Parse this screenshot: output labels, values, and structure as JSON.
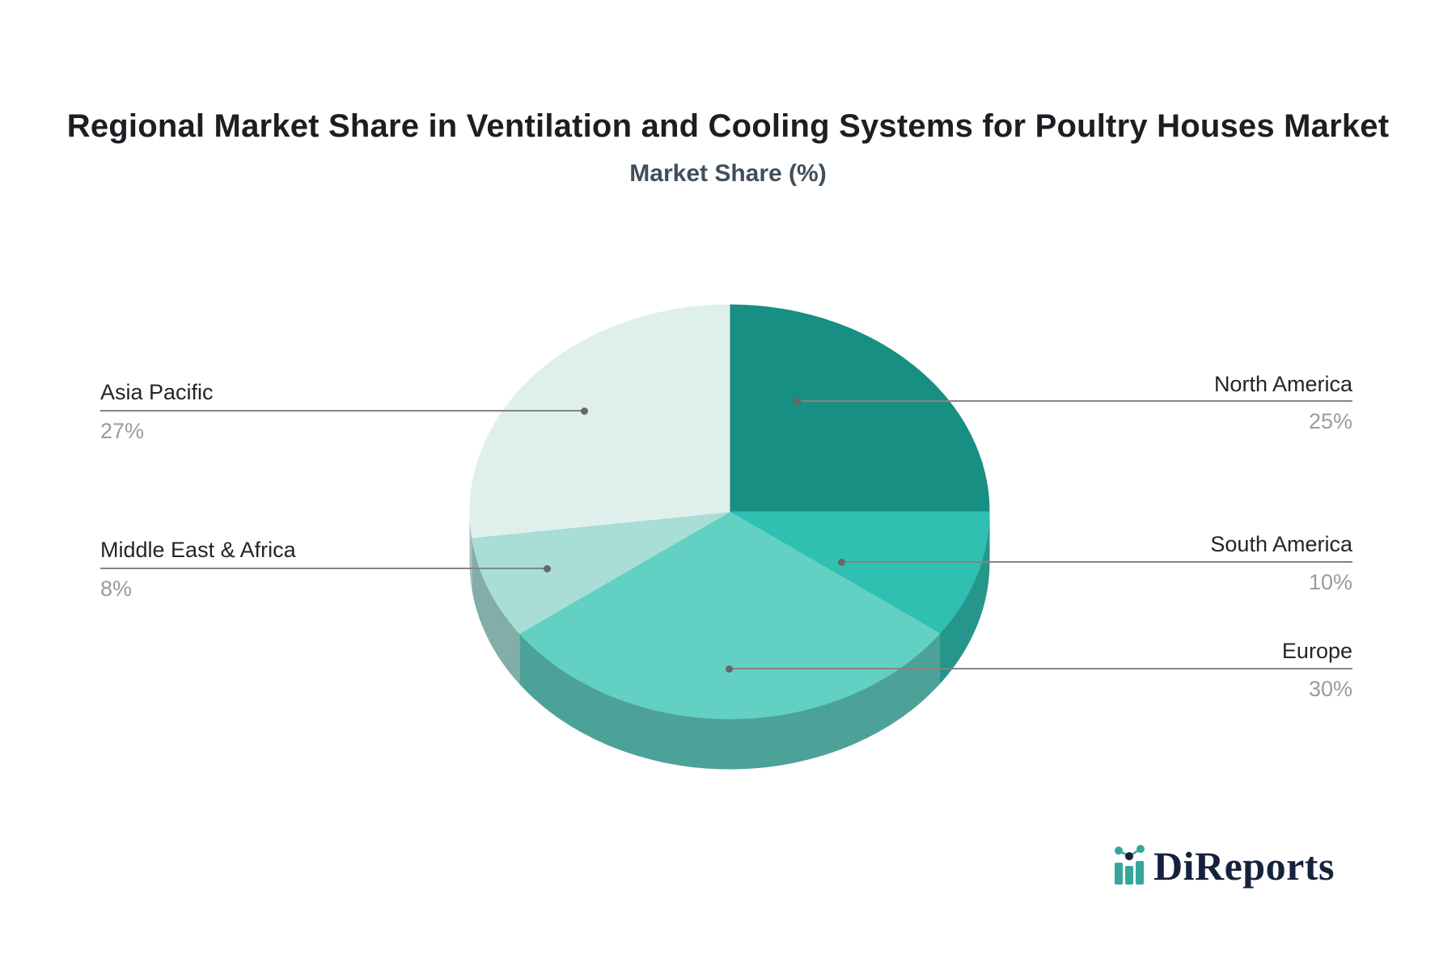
{
  "chart_data": {
    "type": "pie",
    "style_3d": true,
    "title": "Regional Market Share in Ventilation and Cooling Systems for Poultry Houses Market",
    "subtitle": "Market Share (%)",
    "unit": "%",
    "legend_position": "callout-labels",
    "slices": [
      {
        "label": "North America",
        "value": 25,
        "pct_label": "25%",
        "color": "#178f82",
        "callout_side": "right"
      },
      {
        "label": "South America",
        "value": 10,
        "pct_label": "10%",
        "color": "#2fc0b1",
        "callout_side": "right"
      },
      {
        "label": "Europe",
        "value": 30,
        "pct_label": "30%",
        "color": "#62d0c3",
        "callout_side": "right"
      },
      {
        "label": "Middle East & Africa",
        "value": 8,
        "pct_label": "8%",
        "color": "#a8ded6",
        "callout_side": "left"
      },
      {
        "label": "Asia Pacific",
        "value": 27,
        "pct_label": "27%",
        "color": "#deefec",
        "callout_side": "left"
      }
    ]
  },
  "branding": {
    "logo_text": "DiReports",
    "logo_teal": "#36a69b",
    "logo_navy": "#15223c"
  },
  "style": {
    "title_color": "#1b1e22",
    "subtitle_color": "#414e5b",
    "label_color": "#22262b",
    "pct_color": "#9b9b9b",
    "leader_line_color": "#848484",
    "marker_dot_color": "#676767",
    "background": "#ffffff"
  }
}
